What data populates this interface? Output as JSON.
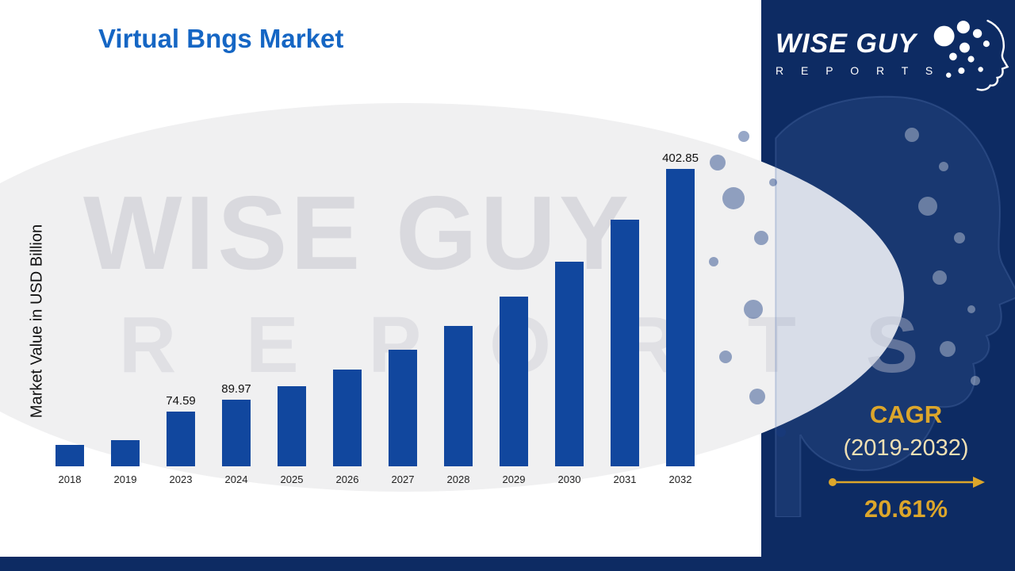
{
  "title": "Virtual Bngs Market",
  "colors": {
    "bar": "#11479e",
    "title": "#1566c4",
    "panel": "#0d2b63",
    "accent_gold": "#dca62b",
    "circle_bg": "#f0f0f1",
    "watermark": "#c6c6cd"
  },
  "watermark": {
    "line1": "WISE GUY",
    "line2": "R E P O R T S"
  },
  "logo": {
    "name_line": "WISE GUY",
    "sub_line": "R E P O R T S"
  },
  "sidebar": {
    "cagr_label": "CAGR",
    "cagr_period": "(2019-2032)",
    "cagr_value": "20.61%"
  },
  "chart_data": {
    "type": "bar",
    "title": "Virtual Bngs Market",
    "xlabel": "",
    "ylabel": "Market Value in USD Billion",
    "categories": [
      "2018",
      "2019",
      "2023",
      "2024",
      "2025",
      "2026",
      "2027",
      "2028",
      "2029",
      "2030",
      "2031",
      "2032"
    ],
    "values": [
      29.23,
      35.25,
      74.59,
      89.97,
      108.51,
      130.87,
      157.84,
      190.37,
      229.6,
      276.92,
      334.0,
      402.85
    ],
    "data_labels": [
      "",
      "",
      "74.59",
      "89.97",
      "",
      "",
      "",
      "",
      "",
      "",
      "",
      "402.85"
    ],
    "ylim": [
      0,
      420
    ],
    "grid": false,
    "legend": "none",
    "bar_color": "#11479e"
  }
}
